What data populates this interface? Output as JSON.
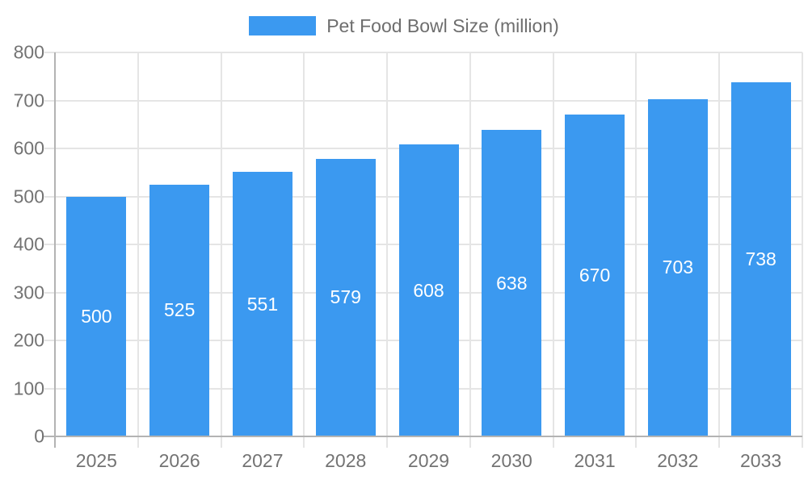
{
  "legend": {
    "label": "Pet Food Bowl Size (million)"
  },
  "chart_data": {
    "type": "bar",
    "title": "Pet Food Bowl Size (million)",
    "categories": [
      "2025",
      "2026",
      "2027",
      "2028",
      "2029",
      "2030",
      "2031",
      "2032",
      "2033"
    ],
    "values": [
      500,
      525,
      551,
      579,
      608,
      638,
      670,
      703,
      738
    ],
    "xlabel": "",
    "ylabel": "",
    "ylim": [
      0,
      800
    ],
    "yticks": [
      0,
      100,
      200,
      300,
      400,
      500,
      600,
      700,
      800
    ],
    "grid": true,
    "legend_position": "top-center",
    "value_labels": "inside-center",
    "colors": {
      "bar": "#3B99F0",
      "bar_label": "#FFFFFF",
      "axis_text": "#737373",
      "legend_text": "#6E6E6E",
      "axis_line": "#B3B3B3",
      "gridline": "#E5E5E5",
      "background": "#FFFFFF"
    }
  }
}
